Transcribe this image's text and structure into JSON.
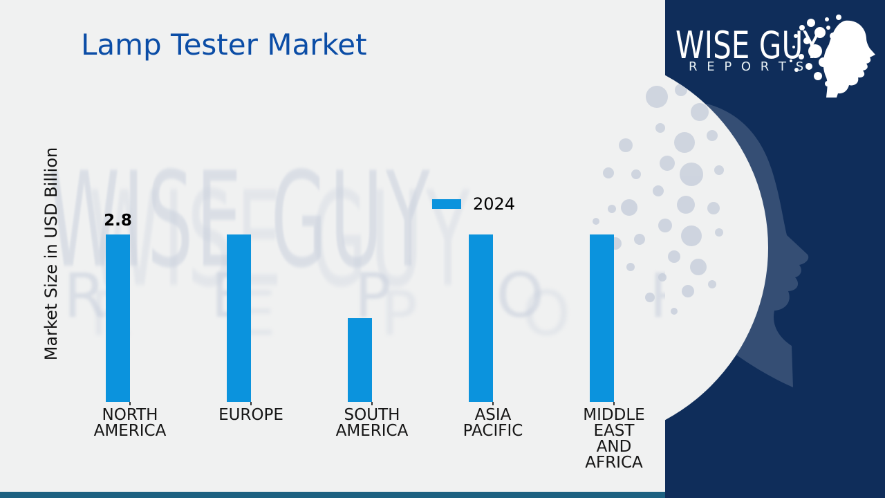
{
  "header": {
    "title": "Lamp Tester Market",
    "title_color": "#0b4da6"
  },
  "logo": {
    "line1": "WISE GUY",
    "line2": "R E P O R T S",
    "panel_color": "#0f2d5a"
  },
  "watermark": {
    "line1": "WISE GUY",
    "line2": "R E P O R T S"
  },
  "chart_data": {
    "type": "bar",
    "title": "Lamp Tester Market",
    "ylabel": "Market Size in USD Billion",
    "categories": [
      "NORTH AMERICA",
      "EUROPE",
      "SOUTH AMERICA",
      "ASIA PACIFIC",
      "MIDDLE EAST AND AFRICA"
    ],
    "category_lines": [
      [
        "NORTH",
        "AMERICA"
      ],
      [
        "EUROPE"
      ],
      [
        "SOUTH",
        "AMERICA"
      ],
      [
        "ASIA",
        "PACIFIC"
      ],
      [
        "MIDDLE",
        "EAST",
        "AND",
        "AFRICA"
      ]
    ],
    "values": [
      2.8,
      2.8,
      1.4,
      2.8,
      2.8
    ],
    "value_labels": [
      "2.8",
      "",
      "",
      "",
      ""
    ],
    "ylim": [
      0,
      3.2
    ],
    "grid": false,
    "bar_color": "#0b93dd",
    "legend": {
      "label": "2024",
      "position": "upper center"
    }
  },
  "footer": {
    "bar_color": "#1c6080"
  }
}
